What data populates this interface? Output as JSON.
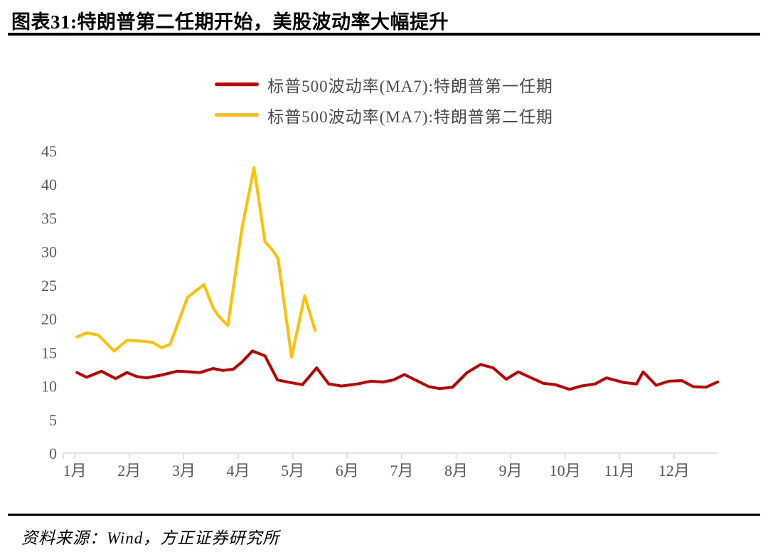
{
  "figure": {
    "title": "图表31:特朗普第二任期开始，美股波动率大幅提升",
    "source": "资料来源：Wind，方正证券研究所"
  },
  "colors": {
    "term1_line": "#C00000",
    "term2_line": "#FFC000",
    "axis_line": "#D9D9D9",
    "axis_text": "#595959",
    "legend_text": "#4a4a4a",
    "rule": "#000000"
  },
  "chart_data": {
    "type": "line",
    "title": "图表31:特朗普第二任期开始，美股波动率大幅提升",
    "xlabel": "",
    "ylabel": "",
    "grid": false,
    "legend_position": "top-center",
    "ylim": [
      0,
      45
    ],
    "y_ticks": [
      0,
      5,
      10,
      15,
      20,
      25,
      30,
      35,
      40,
      45
    ],
    "x_tick_labels": [
      "1月",
      "2月",
      "3月",
      "4月",
      "5月",
      "6月",
      "7月",
      "8月",
      "9月",
      "10月",
      "11月",
      "12月"
    ],
    "x_unit": "month (0 = Jan 1, 12 = Dec 31)",
    "series": [
      {
        "name": "标普500波动率(MA7):特朗普第一任期",
        "color": "#C00000",
        "points": [
          [
            0.54,
            12.0
          ],
          [
            0.72,
            11.3
          ],
          [
            0.99,
            12.2
          ],
          [
            1.25,
            11.1
          ],
          [
            1.46,
            12.0
          ],
          [
            1.64,
            11.4
          ],
          [
            1.82,
            11.2
          ],
          [
            2.08,
            11.6
          ],
          [
            2.38,
            12.2
          ],
          [
            2.62,
            12.1
          ],
          [
            2.8,
            12.0
          ],
          [
            3.04,
            12.6
          ],
          [
            3.22,
            12.3
          ],
          [
            3.41,
            12.5
          ],
          [
            3.56,
            13.5
          ],
          [
            3.76,
            15.2
          ],
          [
            3.99,
            14.5
          ],
          [
            4.22,
            10.9
          ],
          [
            4.46,
            10.5
          ],
          [
            4.68,
            10.2
          ],
          [
            4.94,
            12.7
          ],
          [
            5.16,
            10.3
          ],
          [
            5.4,
            10.0
          ],
          [
            5.69,
            10.3
          ],
          [
            5.93,
            10.7
          ],
          [
            6.16,
            10.6
          ],
          [
            6.35,
            10.9
          ],
          [
            6.55,
            11.7
          ],
          [
            6.8,
            10.7
          ],
          [
            7.0,
            9.9
          ],
          [
            7.2,
            9.6
          ],
          [
            7.43,
            9.8
          ],
          [
            7.7,
            12.0
          ],
          [
            7.95,
            13.2
          ],
          [
            8.18,
            12.7
          ],
          [
            8.42,
            11.0
          ],
          [
            8.64,
            12.1
          ],
          [
            8.88,
            11.2
          ],
          [
            9.1,
            10.4
          ],
          [
            9.32,
            10.2
          ],
          [
            9.58,
            9.5
          ],
          [
            9.8,
            10.0
          ],
          [
            10.05,
            10.3
          ],
          [
            10.26,
            11.2
          ],
          [
            10.58,
            10.5
          ],
          [
            10.81,
            10.3
          ],
          [
            10.93,
            12.1
          ],
          [
            11.17,
            10.1
          ],
          [
            11.4,
            10.7
          ],
          [
            11.64,
            10.8
          ],
          [
            11.85,
            9.9
          ],
          [
            12.08,
            9.8
          ],
          [
            12.3,
            10.6
          ]
        ]
      },
      {
        "name": "标普500波动率(MA7):特朗普第二任期",
        "color": "#FFC000",
        "points": [
          [
            0.54,
            17.3
          ],
          [
            0.72,
            17.9
          ],
          [
            0.93,
            17.6
          ],
          [
            1.22,
            15.2
          ],
          [
            1.46,
            16.8
          ],
          [
            1.7,
            16.7
          ],
          [
            1.93,
            16.5
          ],
          [
            2.09,
            15.7
          ],
          [
            2.25,
            16.2
          ],
          [
            2.57,
            23.2
          ],
          [
            2.87,
            25.1
          ],
          [
            3.04,
            21.6
          ],
          [
            3.14,
            20.4
          ],
          [
            3.31,
            19.0
          ],
          [
            3.57,
            33.5
          ],
          [
            3.79,
            42.5
          ],
          [
            3.99,
            31.5
          ],
          [
            4.12,
            30.3
          ],
          [
            4.23,
            29.0
          ],
          [
            4.48,
            14.3
          ],
          [
            4.72,
            23.4
          ],
          [
            4.91,
            18.3
          ]
        ]
      }
    ]
  }
}
